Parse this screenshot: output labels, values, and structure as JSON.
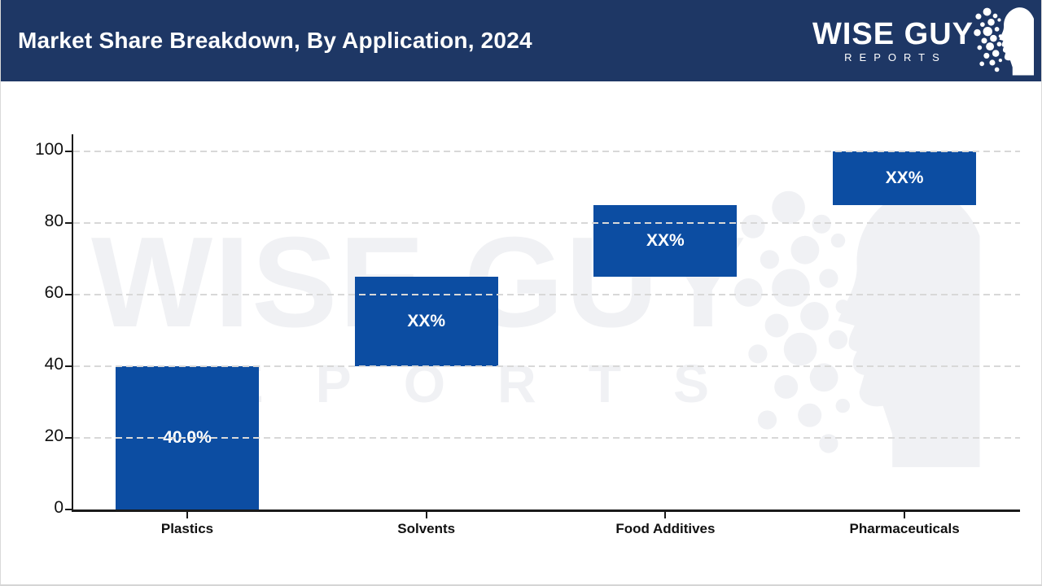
{
  "header": {
    "title": "Market Share Breakdown, By Application, 2024",
    "logo": {
      "line1": "WISE GUY",
      "line2": "REPORTS"
    }
  },
  "watermark": {
    "line1": "WISE GUY",
    "line2": "REPORTS"
  },
  "colors": {
    "header_bg": "#1E3765",
    "bar": "#0C4DA2",
    "bar_label": "#FFFFFF",
    "gridline": "#D8D8D8",
    "axis": "#1A1A1A",
    "watermark": "#F0F1F4"
  },
  "chart_data": {
    "type": "bar",
    "subtype": "waterfall",
    "title": "Market Share Breakdown, By Application, 2024",
    "categories": [
      "Plastics",
      "Solvents",
      "Food Additives",
      "Pharmaceuticals"
    ],
    "segments": [
      {
        "category": "Plastics",
        "start": 0,
        "end": 40,
        "label": "40.0%"
      },
      {
        "category": "Solvents",
        "start": 40,
        "end": 65,
        "label": "XX%"
      },
      {
        "category": "Food Additives",
        "start": 65,
        "end": 85,
        "label": "XX%"
      },
      {
        "category": "Pharmaceuticals",
        "start": 85,
        "end": 100,
        "label": "XX%"
      }
    ],
    "xlabel": "",
    "ylabel": "",
    "ylim": [
      0,
      100
    ],
    "yticks": [
      0,
      20,
      40,
      60,
      80,
      100
    ],
    "grid": "dashed-horizontal",
    "legend": "none",
    "bar_color": "#0C4DA2",
    "bar_label_color": "#FFFFFF"
  }
}
